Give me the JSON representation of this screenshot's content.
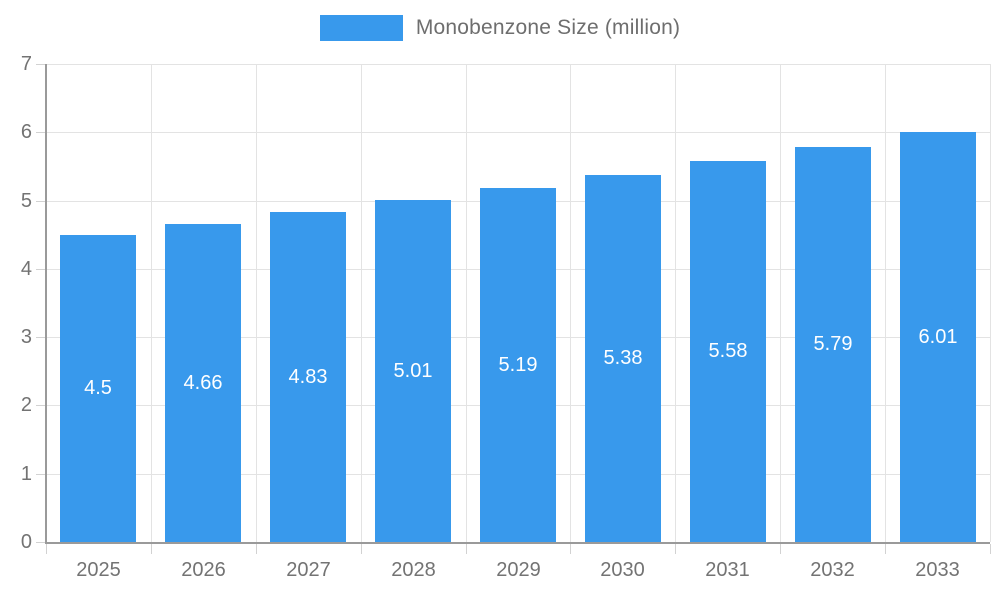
{
  "chart_data": {
    "type": "bar",
    "title": "Monobenzone Size (million)",
    "legend": {
      "label": "Monobenzone Size (million)",
      "position": "top"
    },
    "categories": [
      "2025",
      "2026",
      "2027",
      "2028",
      "2029",
      "2030",
      "2031",
      "2032",
      "2033"
    ],
    "series": [
      {
        "name": "Monobenzone Size (million)",
        "values": [
          4.5,
          4.66,
          4.83,
          5.01,
          5.19,
          5.38,
          5.58,
          5.79,
          6.01
        ],
        "value_labels": [
          "4.5",
          "4.66",
          "4.83",
          "5.01",
          "5.19",
          "5.38",
          "5.58",
          "5.79",
          "6.01"
        ]
      }
    ],
    "xlabel": "",
    "ylabel": "",
    "ylim": [
      0,
      7
    ],
    "yticks": [
      0,
      1,
      2,
      3,
      4,
      5,
      6,
      7
    ],
    "grid": true,
    "value_labels_inside_bars": true
  },
  "colors": {
    "bar": "#3899ec",
    "grid": "#e3e3e3",
    "axis": "#9a9a9a",
    "tick": "#d2d2d2",
    "tick_label": "#737373",
    "legend_text": "#6e6e6e",
    "bar_label": "#ffffff",
    "background": "#ffffff"
  }
}
